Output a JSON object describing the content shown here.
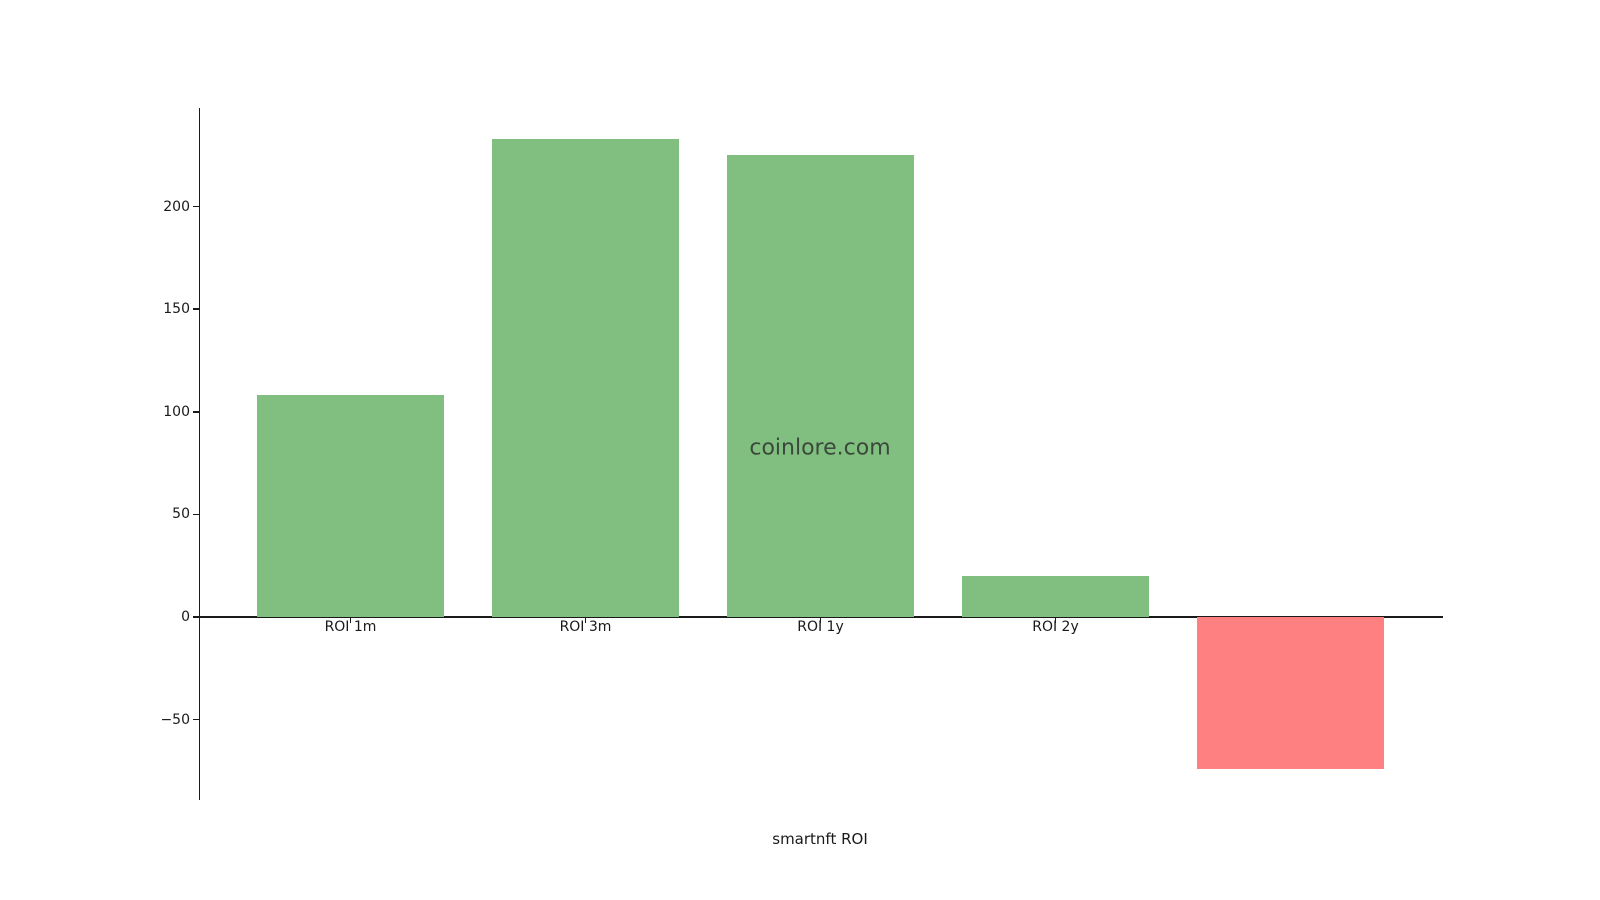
{
  "page": {
    "background": "#ffffff"
  },
  "chart_data": {
    "type": "bar",
    "title": "",
    "xlabel": "smartnft ROI",
    "ylabel": "",
    "categories": [
      "ROI 1m",
      "ROI 3m",
      "ROI 1y",
      "ROI 2y",
      ""
    ],
    "values": [
      108,
      233,
      225,
      20,
      -74
    ],
    "bar_colors": [
      "#80bf80",
      "#80bf80",
      "#80bf80",
      "#80bf80",
      "#ff8080"
    ],
    "positive_color": "#80bf80",
    "negative_color": "#ff8080",
    "yticks": [
      200,
      150,
      100,
      50,
      0,
      -50
    ],
    "ytick_labels": [
      "200",
      "150",
      "100",
      "50",
      "0",
      "−50"
    ],
    "ylim": [
      -89,
      248
    ],
    "grid": false,
    "legend_position": "none",
    "axis_color": "#1a1a1a",
    "watermark": "coinlore.com"
  }
}
